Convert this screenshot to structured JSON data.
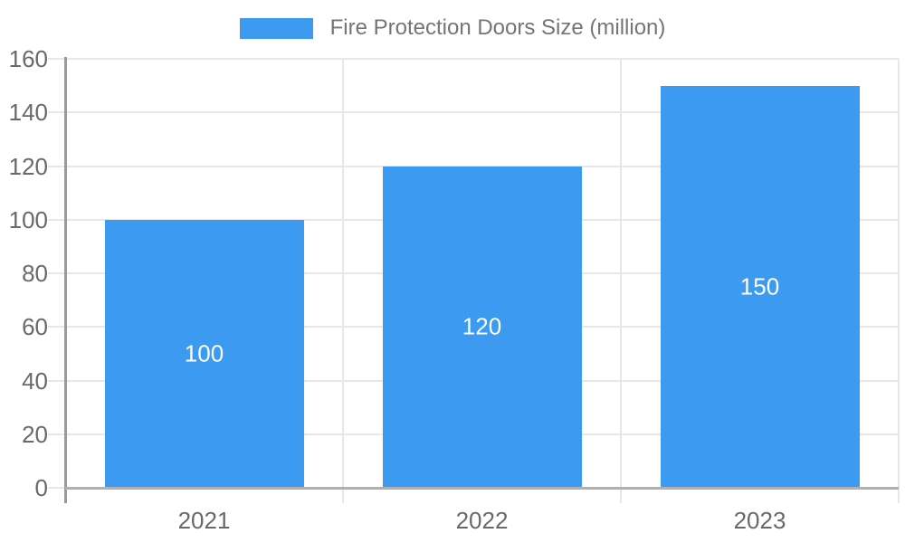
{
  "chart_data": {
    "type": "bar",
    "title": "Fire Protection Doors Size (million)",
    "legend_position": "top",
    "categories": [
      "2021",
      "2022",
      "2023"
    ],
    "values": [
      100,
      120,
      150
    ],
    "data_labels": [
      "100",
      "120",
      "150"
    ],
    "xlabel": "",
    "ylabel": "",
    "ylim": [
      0,
      160
    ],
    "ytick_step": 20,
    "yticks": [
      0,
      20,
      40,
      60,
      80,
      100,
      120,
      140,
      160
    ],
    "grid": true,
    "colors": {
      "bar": "#3C9AF0",
      "grid_line": "#E7E7E7",
      "x_axis_line": "#B0B0B0",
      "y_axis_line": "#9B9B9B",
      "tick_label": "#696969",
      "legend_text": "#757575",
      "data_label": "#FFFFFF",
      "background": "#FFFFFF"
    }
  }
}
